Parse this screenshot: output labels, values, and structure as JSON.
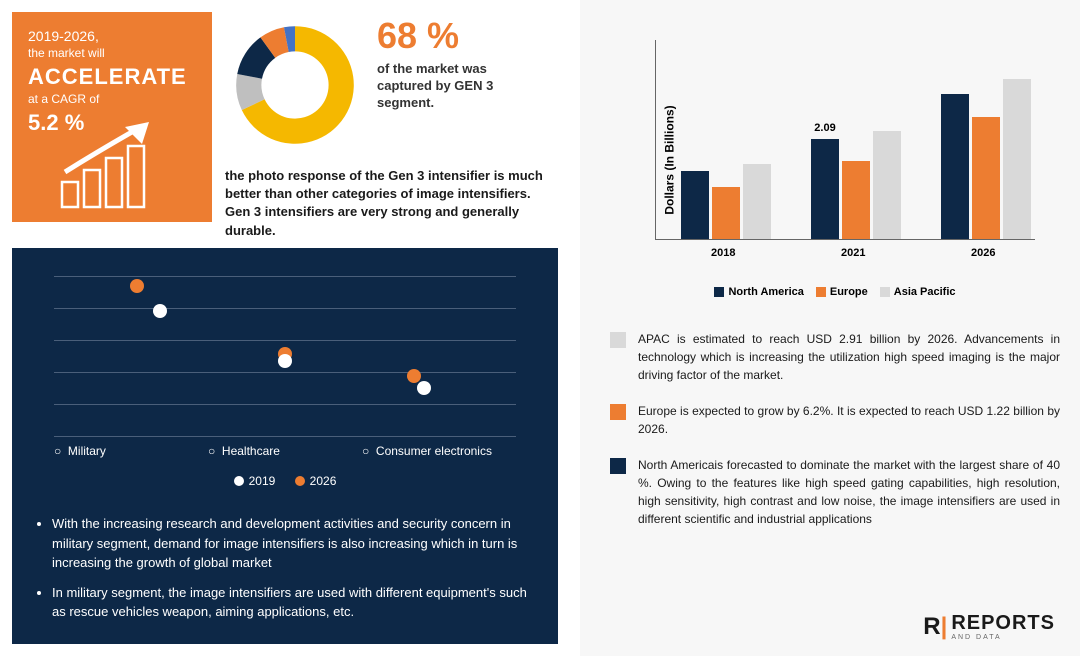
{
  "colors": {
    "orange": "#ed7d31",
    "navy": "#0d2847",
    "white": "#ffffff",
    "gray": "#bfbfbf",
    "lightgray": "#d9d9d9",
    "yellow": "#f5b800",
    "blue": "#4472c4",
    "darknavy": "#1a3a5f"
  },
  "orange_box": {
    "date_range": "2019-2026,",
    "market_will": "the market will",
    "accelerate": "ACCELERATE",
    "cagr_label": "at a CAGR of",
    "cagr_value": "5.2 %"
  },
  "donut": {
    "pct": "68 %",
    "desc": "of the market was captured by GEN 3 segment.",
    "para": "the photo response of the Gen 3 intensifier is much better than other categories of image intensifiers. Gen 3 intensifiers are very strong and generally durable.",
    "slices": [
      {
        "color": "#f5b800",
        "value": 68
      },
      {
        "color": "#bfbfbf",
        "value": 10
      },
      {
        "color": "#0d2847",
        "value": 12
      },
      {
        "color": "#ed7d31",
        "value": 7
      },
      {
        "color": "#4472c4",
        "value": 3
      }
    ]
  },
  "dot_chart": {
    "rows": [
      0,
      32,
      64,
      96,
      128,
      160
    ],
    "series": [
      {
        "name": "2019",
        "color": "#ffffff"
      },
      {
        "name": "2026",
        "color": "#ed7d31"
      }
    ],
    "points": [
      {
        "x": 18,
        "y": 10,
        "series": 1
      },
      {
        "x": 23,
        "y": 35,
        "series": 0
      },
      {
        "x": 50,
        "y": 78,
        "series": 1
      },
      {
        "x": 50,
        "y": 85,
        "series": 0
      },
      {
        "x": 78,
        "y": 100,
        "series": 1
      },
      {
        "x": 80,
        "y": 112,
        "series": 0
      }
    ],
    "categories": [
      "Military",
      "Healthcare",
      "Consumer electronics"
    ],
    "legend_2019": "2019",
    "legend_2026": "2026"
  },
  "navy_bullets": [
    "With the increasing research and development activities and security concern in military segment, demand for image intensifiers is also increasing which in turn is increasing the growth of global market",
    "In military segment, the image intensifiers are used with different equipment's such as rescue vehicles weapon, aiming applications, etc."
  ],
  "bar_chart": {
    "ylabel": "Dollars (In Billions)",
    "years": [
      "2018",
      "2021",
      "2026"
    ],
    "series": [
      {
        "name": "North America",
        "color": "#0d2847"
      },
      {
        "name": "Europe",
        "color": "#ed7d31"
      },
      {
        "name": "Asia Pacific",
        "color": "#d9d9d9"
      }
    ],
    "data": {
      "2018": [
        68,
        52,
        75
      ],
      "2021": [
        100,
        78,
        108
      ],
      "2026": [
        145,
        122,
        160
      ]
    },
    "callout": {
      "year": "2021",
      "series": 0,
      "label": "2.09"
    },
    "max_height": 180
  },
  "regions": [
    {
      "color": "#d9d9d9",
      "text": "APAC is estimated to reach USD 2.91 billion by 2026. Advancements in technology which is increasing the utilization high speed imaging is the major driving factor of the market."
    },
    {
      "color": "#ed7d31",
      "text": "Europe is expected to grow by 6.2%. It is expected to reach USD  1.22 billion by 2026."
    },
    {
      "color": "#0d2847",
      "text": "North Americais forecasted to dominate the market with the largest share of 40 %. Owing to the features like high speed gating capabilities, high resolution, high sensitivity, high contrast and low noise, the image intensifiers are used in different scientific and industrial applications"
    }
  ],
  "logo": {
    "main": "REPORTS",
    "sub": "AND DATA"
  }
}
